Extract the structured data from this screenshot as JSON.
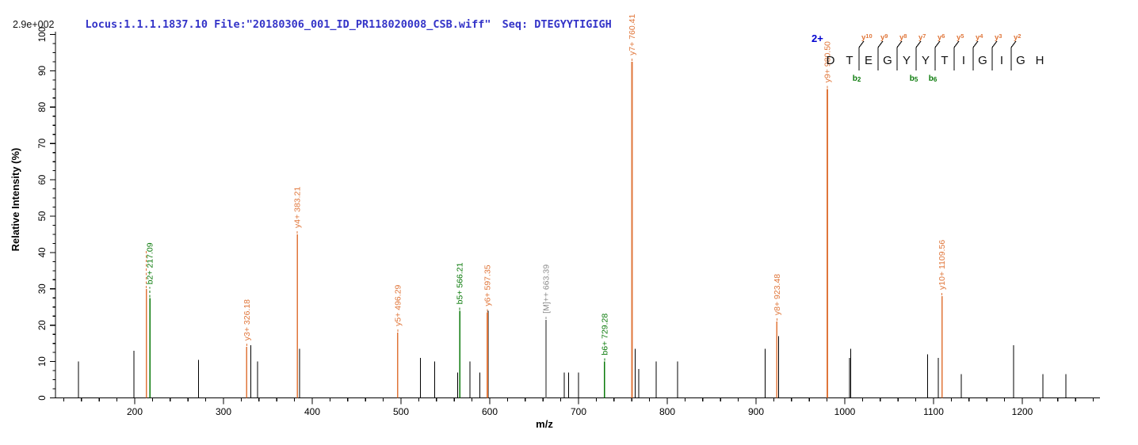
{
  "header": {
    "locus_file": "Locus:1.1.1.1837.10 File:\"20180306_001_ID_PR118020008_CSB.wiff\"",
    "seq_label": "Seq: DTEGYYTIGIGH",
    "max_intensity": "2.9e+002"
  },
  "chart_data": {
    "type": "bar",
    "chart_kind": "MS/MS peptide fragmentation spectrum (centroid stick plot)",
    "xlabel": "m/z",
    "ylabel": "Relative  Intensity (%)",
    "x_axis": {
      "min": 110,
      "max": 1285,
      "major_start": 200,
      "major_end": 1200,
      "major_step": 100,
      "minor_step": 20
    },
    "y_axis": {
      "min": 0,
      "max": 100,
      "major_step": 10,
      "minor_step": 2.5,
      "top_annotation": "2.9e+002"
    },
    "colors": {
      "y_ion": "#e0763a",
      "b_ion": "#0a7a0a",
      "precursor": "#8c8c8c",
      "unassigned": "#000000",
      "header_text": "#3434c8",
      "charge_label": "#0000d0",
      "sequence_text": "#111111"
    },
    "peaks": [
      {
        "mz": 136.6,
        "intensity_pct": 10,
        "ion": "unassigned",
        "label": null
      },
      {
        "mz": 199.1,
        "intensity_pct": 13,
        "ion": "unassigned",
        "label": null
      },
      {
        "mz": 213.1,
        "intensity_pct": 30,
        "ion": "y",
        "label": "",
        "leader": 50
      },
      {
        "mz": 217.09,
        "intensity_pct": 27.5,
        "ion": "b",
        "label": "b2+ 217.09",
        "leader": 14
      },
      {
        "mz": 271.9,
        "intensity_pct": 10.5,
        "ion": "unassigned",
        "label": null
      },
      {
        "mz": 326.18,
        "intensity_pct": 14,
        "ion": "y",
        "label": "y3+ 326.18",
        "leader": 5
      },
      {
        "mz": 331.0,
        "intensity_pct": 14.5,
        "ion": "unassigned",
        "label": null
      },
      {
        "mz": 338.4,
        "intensity_pct": 10,
        "ion": "unassigned",
        "label": null
      },
      {
        "mz": 383.21,
        "intensity_pct": 45,
        "ion": "y",
        "label": "y4+ 383.21",
        "leader": 5
      },
      {
        "mz": 385.6,
        "intensity_pct": 13.5,
        "ion": "unassigned",
        "label": null
      },
      {
        "mz": 496.29,
        "intensity_pct": 18,
        "ion": "y",
        "label": "y5+ 496.29",
        "leader": 5
      },
      {
        "mz": 521.8,
        "intensity_pct": 11,
        "ion": "unassigned",
        "label": null
      },
      {
        "mz": 538.0,
        "intensity_pct": 10,
        "ion": "unassigned",
        "label": null
      },
      {
        "mz": 563.8,
        "intensity_pct": 7,
        "ion": "unassigned",
        "label": null
      },
      {
        "mz": 566.21,
        "intensity_pct": 24,
        "ion": "b",
        "label": "b5+ 566.21",
        "leader": 5
      },
      {
        "mz": 577.9,
        "intensity_pct": 10,
        "ion": "unassigned",
        "label": null
      },
      {
        "mz": 588.8,
        "intensity_pct": 7,
        "ion": "unassigned",
        "label": null
      },
      {
        "mz": 598.4,
        "intensity_pct": 24,
        "ion": "unassigned",
        "label": null
      },
      {
        "mz": 597.35,
        "intensity_pct": 23.5,
        "ion": "y",
        "label": "y6+ 597.35",
        "leader": 5
      },
      {
        "mz": 663.39,
        "intensity_pct": 21.5,
        "ion": "precursor",
        "label": "[M]++ 663.39",
        "leader": 5
      },
      {
        "mz": 683.8,
        "intensity_pct": 7,
        "ion": "unassigned",
        "label": null
      },
      {
        "mz": 688.8,
        "intensity_pct": 7,
        "ion": "unassigned",
        "label": null
      },
      {
        "mz": 700.2,
        "intensity_pct": 7,
        "ion": "unassigned",
        "label": null
      },
      {
        "mz": 729.28,
        "intensity_pct": 10,
        "ion": "b",
        "label": "b6+ 729.28",
        "leader": 5
      },
      {
        "mz": 760.41,
        "intensity_pct": 92.5,
        "ion": "y",
        "label": "y7+ 760.41",
        "leader": 5
      },
      {
        "mz": 763.8,
        "intensity_pct": 13.5,
        "ion": "unassigned",
        "label": null
      },
      {
        "mz": 767.8,
        "intensity_pct": 8,
        "ion": "unassigned",
        "label": null
      },
      {
        "mz": 787.3,
        "intensity_pct": 10,
        "ion": "unassigned",
        "label": null
      },
      {
        "mz": 811.8,
        "intensity_pct": 10,
        "ion": "unassigned",
        "label": null
      },
      {
        "mz": 910.3,
        "intensity_pct": 13.5,
        "ion": "unassigned",
        "label": null
      },
      {
        "mz": 923.48,
        "intensity_pct": 21,
        "ion": "y",
        "label": "y8+ 923.48",
        "leader": 5
      },
      {
        "mz": 925.4,
        "intensity_pct": 17,
        "ion": "unassigned",
        "label": null
      },
      {
        "mz": 980.5,
        "intensity_pct": 85,
        "ion": "y",
        "label": "y9+ 980.50",
        "leader": 5
      },
      {
        "mz": 1005.5,
        "intensity_pct": 11,
        "ion": "unassigned",
        "label": null
      },
      {
        "mz": 1006.9,
        "intensity_pct": 13.5,
        "ion": "unassigned",
        "label": null
      },
      {
        "mz": 1093.5,
        "intensity_pct": 12,
        "ion": "unassigned",
        "label": null
      },
      {
        "mz": 1105.2,
        "intensity_pct": 11,
        "ion": "unassigned",
        "label": null
      },
      {
        "mz": 1109.56,
        "intensity_pct": 28,
        "ion": "y",
        "label": "y10+ 1109.56",
        "leader": 5
      },
      {
        "mz": 1131.3,
        "intensity_pct": 6.5,
        "ion": "unassigned",
        "label": null
      },
      {
        "mz": 1190.2,
        "intensity_pct": 14.5,
        "ion": "unassigned",
        "label": null
      },
      {
        "mz": 1223.2,
        "intensity_pct": 6.5,
        "ion": "unassigned",
        "label": null
      },
      {
        "mz": 1249.1,
        "intensity_pct": 6.5,
        "ion": "unassigned",
        "label": null
      }
    ],
    "sequence_annotation": {
      "precursor_charge": "2+",
      "sequence": "DTEGYYTIGIGH",
      "y_ions": [
        {
          "num": "10",
          "after_residue": 2
        },
        {
          "num": "9",
          "after_residue": 3
        },
        {
          "num": "8",
          "after_residue": 4
        },
        {
          "num": "7",
          "after_residue": 5
        },
        {
          "num": "6",
          "after_residue": 6
        },
        {
          "num": "5",
          "after_residue": 7
        },
        {
          "num": "4",
          "after_residue": 8
        },
        {
          "num": "3",
          "after_residue": 9
        },
        {
          "num": "2",
          "after_residue": 10
        }
      ],
      "b_ions": [
        {
          "num": "2",
          "after_residue": 2
        },
        {
          "num": "5",
          "after_residue": 5
        },
        {
          "num": "6",
          "after_residue": 6
        }
      ]
    }
  }
}
